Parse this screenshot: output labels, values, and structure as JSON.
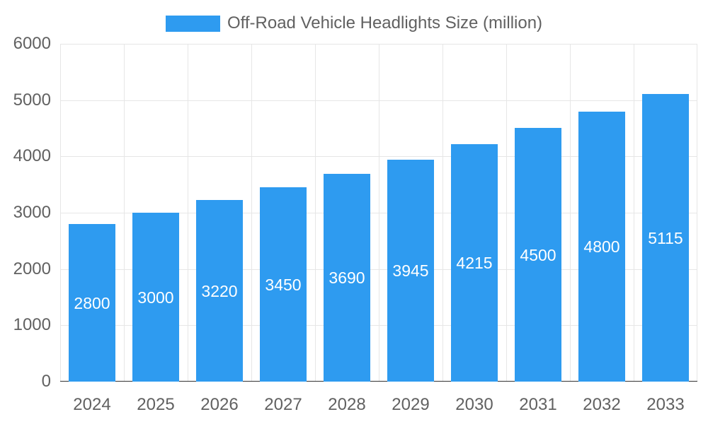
{
  "chart_data": {
    "type": "bar",
    "title": "Off-Road Vehicle Headlights Size (million)",
    "categories": [
      "2024",
      "2025",
      "2026",
      "2027",
      "2028",
      "2029",
      "2030",
      "2031",
      "2032",
      "2033"
    ],
    "values": [
      2800,
      3000,
      3220,
      3450,
      3690,
      3945,
      4215,
      4500,
      4800,
      5115
    ],
    "ylim": [
      0,
      6000
    ],
    "yticks": [
      0,
      1000,
      2000,
      3000,
      4000,
      5000,
      6000
    ],
    "grid": true,
    "legend_position": "top-center",
    "bar_color": "#2e9bf0",
    "value_label_color": "#ffffff",
    "title_color": "#616161",
    "axis_label_color": "#616161",
    "gridline_color": "#e6e6e6",
    "baseline_color": "#333333",
    "background_color": "#ffffff"
  }
}
